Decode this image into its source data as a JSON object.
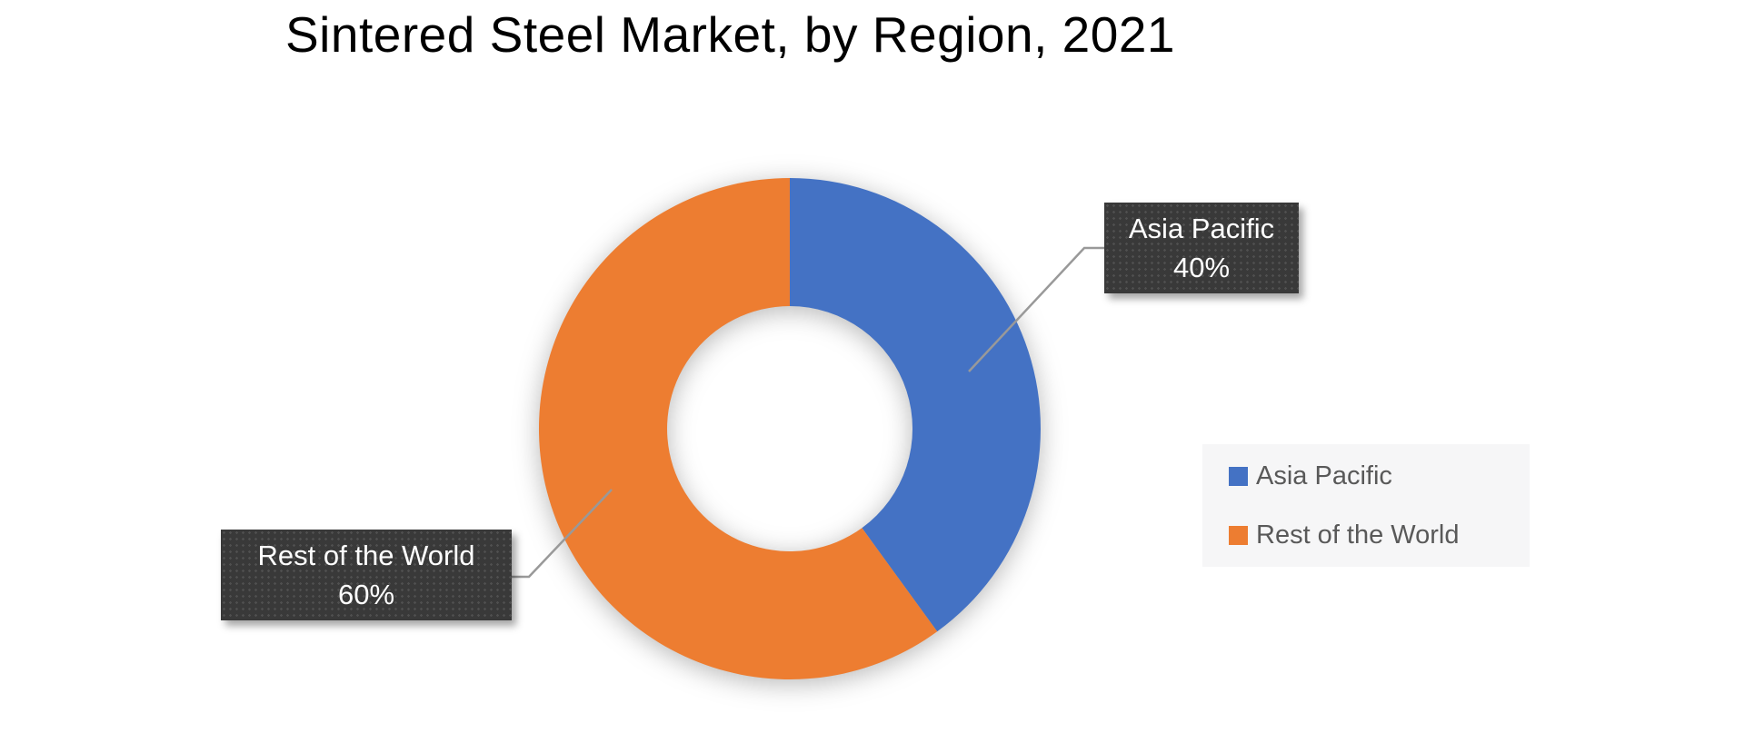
{
  "title": "Sintered Steel Market, by Region, 2021",
  "chart_data": {
    "type": "pie",
    "subtype": "donut",
    "title": "Sintered Steel Market, by Region, 2021",
    "categories": [
      "Asia Pacific",
      "Rest of the World"
    ],
    "values": [
      40,
      60
    ],
    "unit": "%",
    "colors": [
      "#4472C4",
      "#ED7D31"
    ],
    "start_angle_deg": -90,
    "direction": "clockwise",
    "inner_radius_ratio": 0.49,
    "legend_position": "right",
    "grid": false,
    "data_labels": [
      {
        "label": "Asia Pacific",
        "value_text": "40%"
      },
      {
        "label": "Rest of the World",
        "value_text": "60%"
      }
    ]
  },
  "callouts": {
    "asia_pacific": {
      "line1": "Asia Pacific",
      "line2": "40%"
    },
    "rest_of_world": {
      "line1": "Rest of the World",
      "line2": "60%"
    }
  },
  "legend": {
    "items": [
      {
        "label": "Asia Pacific",
        "color": "#4472C4"
      },
      {
        "label": "Rest of the World",
        "color": "#ED7D31"
      }
    ]
  },
  "style": {
    "slice_asia_pacific": "#4472C4",
    "slice_rest_of_world": "#ED7D31",
    "callout_background": "#393939",
    "callout_text": "#FFFFFF",
    "leader_line": "#999999",
    "legend_background": "#F6F6F7",
    "legend_text": "#595959",
    "title_color": "#000000",
    "page_background": "#FFFFFF"
  }
}
